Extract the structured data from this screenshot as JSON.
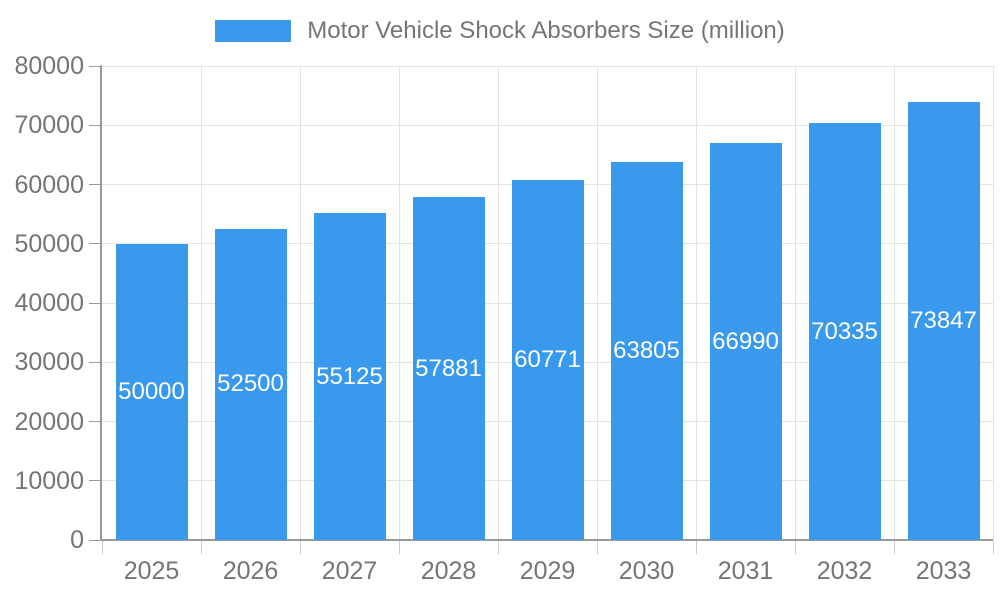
{
  "chart_data": {
    "type": "bar",
    "title": "Motor Vehicle Shock Absorbers Size (million)",
    "legend_position": "top",
    "categories": [
      "2025",
      "2026",
      "2027",
      "2028",
      "2029",
      "2030",
      "2031",
      "2032",
      "2033"
    ],
    "values": [
      50000,
      52500,
      55125,
      57881,
      60771,
      63805,
      66990,
      70335,
      73847
    ],
    "xlabel": "",
    "ylabel": "",
    "ylim": [
      0,
      80000
    ],
    "yticks": [
      0,
      10000,
      20000,
      30000,
      40000,
      50000,
      60000,
      70000,
      80000
    ],
    "grid": true,
    "bar_color": "#3999EC",
    "value_label_color": "#ffffff",
    "axis_text_color": "#757575",
    "axis_line_color": "#999999",
    "x_tick_color": "#cccccc",
    "gridline_color": "#e3e3e3",
    "background": "#ffffff"
  }
}
